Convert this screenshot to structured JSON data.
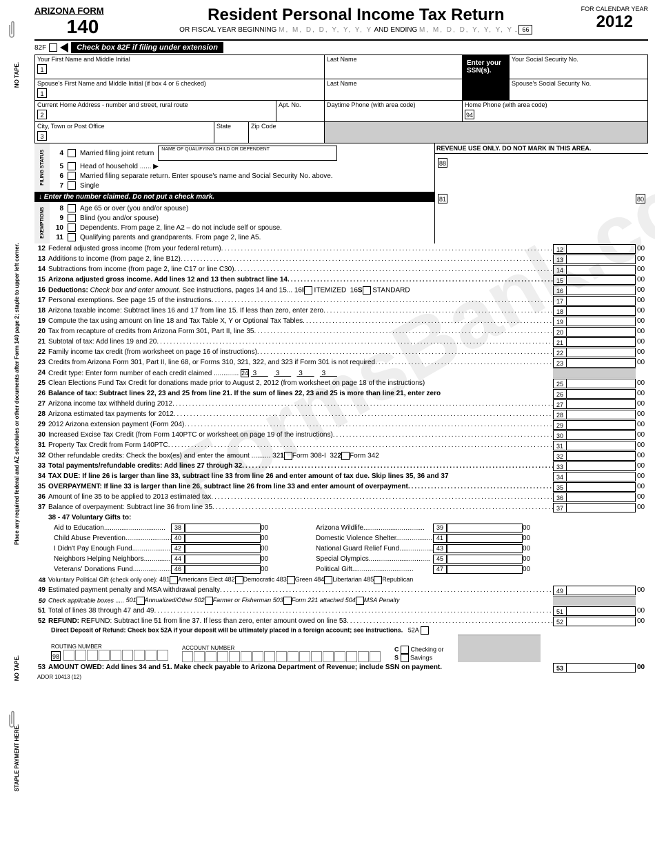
{
  "header": {
    "state_form": "ARIZONA FORM",
    "form_num": "140",
    "title": "Resident Personal Income Tax Return",
    "for_cal": "FOR CALENDAR YEAR",
    "year": "2012",
    "fiscal_begin": "OR FISCAL YEAR BEGINNING",
    "fiscal_m": "M, M, D, D, Y, Y, Y, Y",
    "fiscal_end": "AND ENDING",
    "box66": "66",
    "row82f_label": "82F",
    "row82f_text": "Check box 82F if filing under extension"
  },
  "info": {
    "first_name": "Your First Name and Middle Initial",
    "last_name": "Last Name",
    "ssn": "Your Social Security No.",
    "sp_first": "Spouse's First Name and Middle Initial (if box 4 or 6 checked)",
    "sp_last": "Last Name",
    "sp_ssn": "Spouse's Social Security No.",
    "address": "Current Home Address - number and street, rural route",
    "apt": "Apt. No.",
    "day_phone": "Daytime Phone (with area code)",
    "home_phone": "Home Phone (with area code)",
    "city": "City, Town or Post Office",
    "state": "State",
    "zip": "Zip Code",
    "enter_ssn": "Enter your SSN(s).",
    "box94": "94"
  },
  "filing": {
    "section_label": "FILING STATUS",
    "exemp_label": "EXEMPTIONS",
    "l4": "Married filing joint return",
    "l5": "Head of household ...... ▶",
    "qual": "NAME OF QUALIFYING CHILD OR DEPENDENT",
    "l6": "Married filing separate return.  Enter spouse's name and Social Security No. above.",
    "l7": "Single",
    "instr": "Enter the number claimed.  Do not put a check mark.",
    "l8": "Age 65 or over (you and/or spouse)",
    "l9": "Blind (you and/or spouse)",
    "l10": "Dependents.  From page 2, line A2 – do not include self or spouse.",
    "l11": "Qualifying parents and grandparents. From page 2, line A5.",
    "rev_use": "REVENUE USE ONLY. DO NOT MARK IN THIS AREA.",
    "box88": "88",
    "box81": "81",
    "box80": "80"
  },
  "lines": {
    "l12": "Federal adjusted gross income (from your federal return)",
    "l13": "Additions to income (from page 2, line B12)",
    "l14": "Subtractions from income (from page 2, line C17 or line C30)",
    "l15": "Arizona adjusted gross income.  Add lines 12 and 13 then subtract line 14",
    "l16": "Deductions:  Check box and enter amount.  See instructions, pages 14 and 15",
    "l16i": "ITEMIZED",
    "l16s": "STANDARD",
    "l17": "Personal exemptions.  See page 15 of the instructions",
    "l18": "Arizona taxable income:  Subtract lines 16 and 17 from line 15.  If less than zero, enter zero",
    "l19": "Compute the tax using amount on line 18 and Tax Table X, Y or Optional Tax Tables",
    "l20": "Tax from recapture of credits from Arizona Form 301, Part II, line 35",
    "l21": "Subtotal of tax:  Add lines 19 and 20",
    "l22": "Family income tax credit (from worksheet on page 16 of instructions)",
    "l23": "Credits from Arizona Form 301, Part II, line 68, or Forms 310, 321, 322, and 323 if Form 301 is not required",
    "l24": "Credit type:  Enter form number of each credit claimed",
    "l25": "Clean Elections Fund Tax Credit for donations made prior to August 2, 2012 (from worksheet on page 18 of the instructions)",
    "l26": "Balance of tax:  Subtract lines 22, 23 and 25 from line 21. If the sum of lines 22, 23 and 25 is more than line 21, enter zero",
    "l27": "Arizona income tax withheld during 2012",
    "l28": "Arizona estimated tax payments for 2012",
    "l29": "2012 Arizona extension payment (Form 204)",
    "l30": "Increased Excise Tax Credit (from Form 140PTC or worksheet on page 19 of the instructions)",
    "l31": "Property Tax Credit from Form 140PTC",
    "l32": "Other refundable credits:  Check the box(es) and enter the amount",
    "l32a": "Form 308-I",
    "l32b": "Form 342",
    "l33": "Total payments/refundable credits:  Add lines 27 through 32",
    "l34": "TAX DUE:  If line 26 is larger than line 33, subtract line 33 from line 26 and enter amount of tax due. Skip lines 35, 36 and 37",
    "l35": "OVERPAYMENT:  If line 33 is larger than line 26, subtract line 26 from line 33 and enter amount of overpayment",
    "l36": "Amount of line 35 to be applied to 2013 estimated tax",
    "l37": "Balance of overpayment:  Subtract line 36 from line 35",
    "l38t": "38 - 47 Voluntary Gifts to:"
  },
  "gifts": [
    {
      "n": "38",
      "label": "Aid to Education"
    },
    {
      "n": "39",
      "label": "Arizona Wildlife"
    },
    {
      "n": "40",
      "label": "Child Abuse Prevention"
    },
    {
      "n": "41",
      "label": "Domestic Violence Shelter"
    },
    {
      "n": "42",
      "label": "I Didn't Pay Enough Fund"
    },
    {
      "n": "43",
      "label": "National Guard Relief Fund"
    },
    {
      "n": "44",
      "label": "Neighbors Helping Neighbors"
    },
    {
      "n": "45",
      "label": "Special Olympics"
    },
    {
      "n": "46",
      "label": "Veterans' Donations Fund"
    },
    {
      "n": "47",
      "label": "Political Gift"
    }
  ],
  "bottom": {
    "l48": "Voluntary Political Gift (check only one):",
    "l48opts": [
      "Americans Elect",
      "Democratic",
      "Green",
      "Libertarian",
      "Republican"
    ],
    "l48nums": [
      "481",
      "482",
      "483",
      "484",
      "485"
    ],
    "l49": "Estimated payment penalty and MSA withdrawal penalty",
    "l50": "Check applicable boxes",
    "l50opts": [
      "Annualized/Other",
      "Farmer or Fisherman",
      "Form 221 attached",
      "MSA Penalty"
    ],
    "l50nums": [
      "501",
      "502",
      "503",
      "504"
    ],
    "l51": "Total of lines 38 through 47 and 49",
    "l52": "REFUND:  Subtract line 51 from line 37. If less than zero, enter amount owed on line 53",
    "dd": "Direct Deposit of Refund:  Check box 52A if your deposit will be ultimately placed in a foreign account; see instructions.",
    "routing": "ROUTING NUMBER",
    "account": "ACCOUNT NUMBER",
    "checking": "Checking or",
    "savings": "Savings",
    "l53": "AMOUNT OWED:  Add lines 34 and 51.  Make check payable to Arizona Department of Revenue; include SSN on payment.",
    "box98": "98",
    "box52a": "52A",
    "ador": "ADOR 10413 (12)"
  },
  "side": {
    "notape1": "NO TAPE.",
    "p2": "Place any required federal and AZ schedules or other documents after Form 140 page 2; staple to upper left corner.",
    "notape2": "NO TAPE.",
    "staple": "STAPLE PAYMENT HERE."
  },
  "colors": {
    "black": "#000000",
    "shade": "#cccccc",
    "watermark": "rgba(200,200,200,0.3)"
  }
}
